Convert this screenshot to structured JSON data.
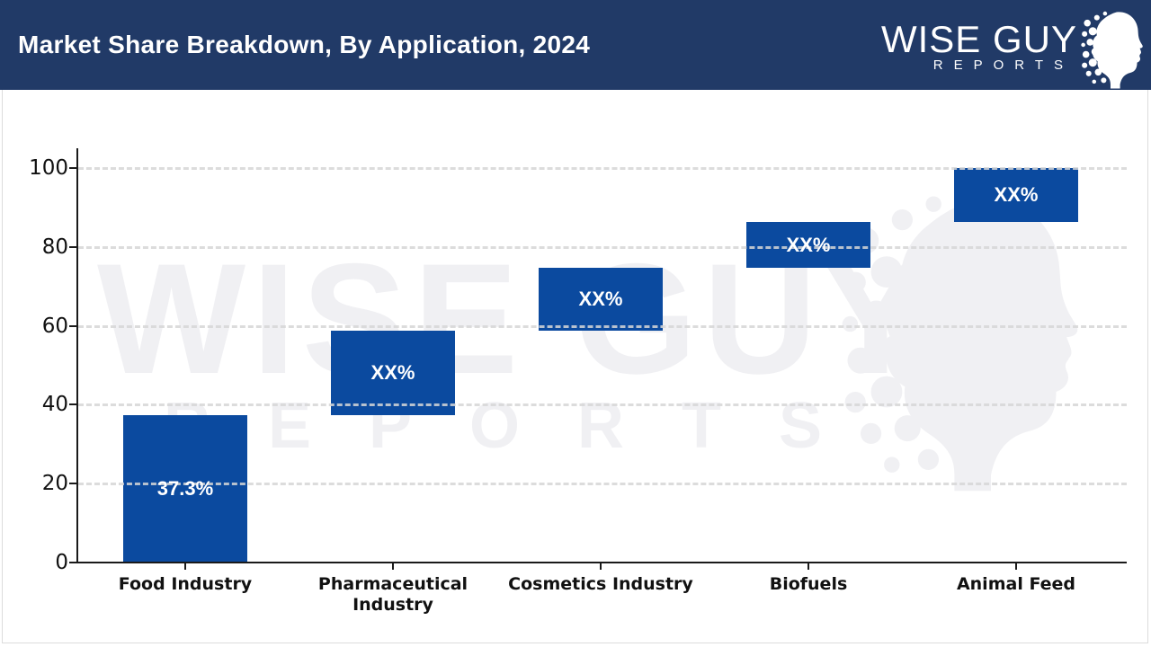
{
  "header": {
    "title": "Market Share Breakdown, By Application, 2024"
  },
  "logo": {
    "line1": "WISE GUY",
    "line2": "REPORTS"
  },
  "watermark": {
    "line1": "WISE GUY",
    "line2": "REPORTS"
  },
  "colors": {
    "header_bg": "#213a67",
    "bar": "#0b4a9f",
    "bar_label": "#ffffff",
    "gridline": "#d6d6d6",
    "axis": "#1a1a1a",
    "watermark": "#f0f0f3"
  },
  "chart_data": {
    "type": "bar",
    "subtype": "floating-waterfall-segments",
    "title": "Market Share Breakdown, By Application, 2024",
    "categories": [
      "Food Industry",
      "Pharmaceutical\nIndustry",
      "Cosmetics Industry",
      "Biofuels",
      "Animal Feed"
    ],
    "series": [
      {
        "name": "Market share (%)",
        "segments": [
          {
            "category": "Food Industry",
            "start": 0,
            "end": 37.3,
            "label": "37.3%"
          },
          {
            "category": "Pharmaceutical Industry",
            "start": 37.3,
            "end": 58.8,
            "label": "XX%"
          },
          {
            "category": "Cosmetics Industry",
            "start": 58.8,
            "end": 74.7,
            "label": "XX%"
          },
          {
            "category": "Biofuels",
            "start": 74.7,
            "end": 86.3,
            "label": "XX%"
          },
          {
            "category": "Animal Feed",
            "start": 86.3,
            "end": 100,
            "label": "XX%"
          }
        ]
      }
    ],
    "xlabel": "",
    "ylabel": "",
    "ylim": [
      0,
      100
    ],
    "yticks": [
      0,
      20,
      40,
      60,
      80,
      100
    ],
    "grid": "horizontal-dashed",
    "legend": "none"
  }
}
